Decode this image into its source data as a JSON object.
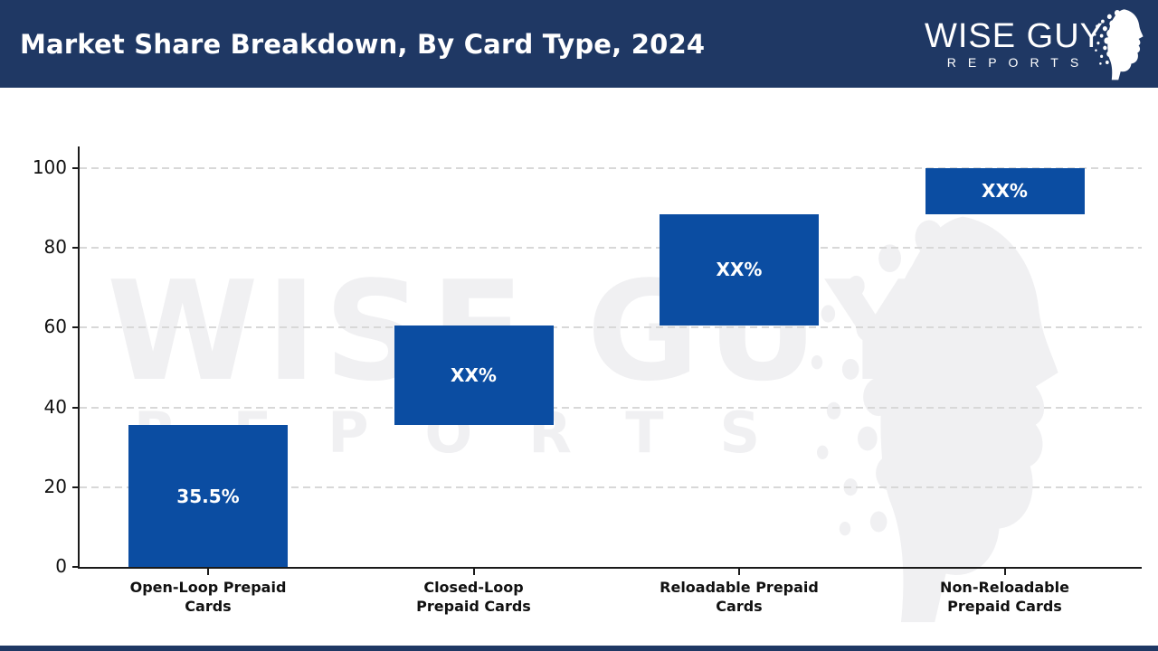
{
  "header": {
    "title": "Market Share Breakdown, By Card Type, 2024",
    "logo": {
      "wordmark": "WISE GUY",
      "subtext": "REPORTS"
    }
  },
  "watermark": {
    "wordmark": "WISE GUY",
    "subtext": "REPORTS"
  },
  "chart_data": {
    "type": "waterfall",
    "title": "Market Share Breakdown, By Card Type, 2024",
    "categories": [
      [
        "Open-Loop Prepaid",
        "Cards"
      ],
      [
        "Closed-Loop",
        "Prepaid Cards"
      ],
      [
        "Reloadable Prepaid",
        "Cards"
      ],
      [
        "Non-Reloadable",
        "Prepaid Cards"
      ]
    ],
    "bars": [
      {
        "start": 0,
        "end": 35.5,
        "label": "35.5%"
      },
      {
        "start": 35.5,
        "end": 60.5,
        "label": "XX%"
      },
      {
        "start": 60.5,
        "end": 88.5,
        "label": "XX%"
      },
      {
        "start": 88.5,
        "end": 100,
        "label": "XX%"
      }
    ],
    "ylim": [
      0,
      100
    ],
    "yticks": [
      0,
      20,
      40,
      60,
      80,
      100
    ],
    "grid": "horizontal-dashed",
    "legend": null
  },
  "colors": {
    "header_bg": "#1f3864",
    "bar": "#0b4da2",
    "grid": "#d8d8d8",
    "axis": "#1a1a1a",
    "title_text": "#ffffff",
    "bar_label": "#ffffff",
    "tick_text": "#111111",
    "watermark": "#f0f0f2"
  }
}
